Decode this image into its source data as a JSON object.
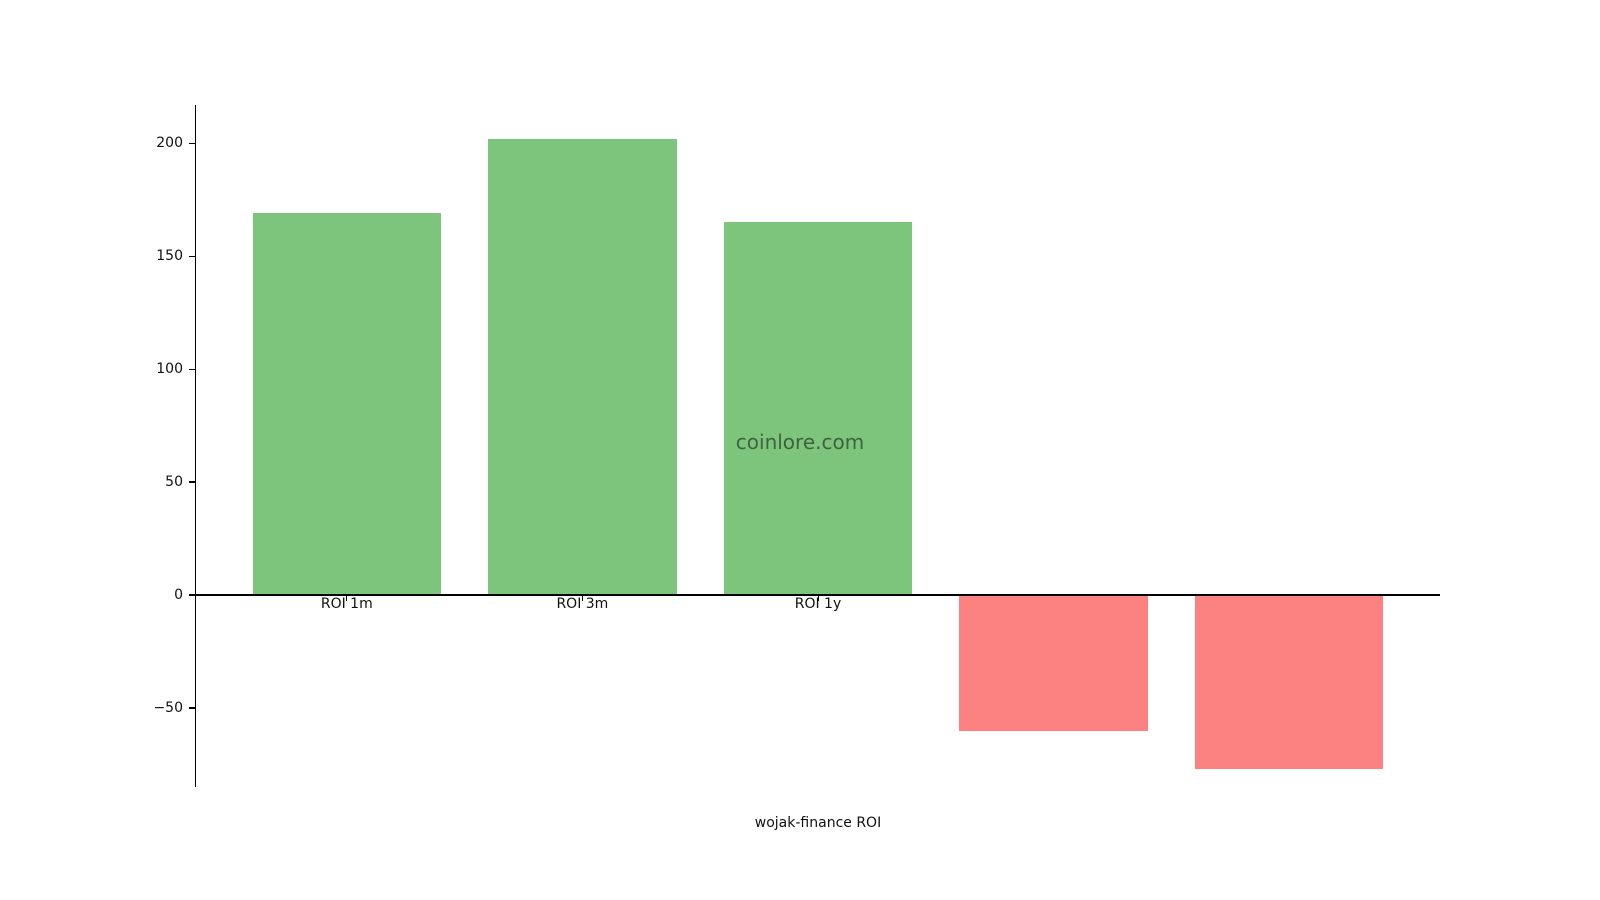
{
  "chart_data": {
    "type": "bar",
    "title": "wojak-finance ROI",
    "watermark": "coinlore.com",
    "categories": [
      "ROI 1m",
      "ROI 3m",
      "ROI 1y",
      "",
      ""
    ],
    "values": [
      169,
      202,
      165,
      -60,
      -77
    ],
    "yticks": [
      200,
      150,
      100,
      50,
      0,
      -50
    ],
    "ytick_labels": [
      "200",
      "150",
      "100",
      "50",
      "0",
      "−50"
    ],
    "ylim": [
      -85,
      217
    ],
    "xlim": [
      -0.64,
      4.64
    ],
    "bar_width_fraction": 0.8,
    "grid": false,
    "legend": "none",
    "colors": {
      "positive": "#7dc47d",
      "negative": "#fc8181",
      "axis": "#000000",
      "text": "#111111"
    }
  }
}
